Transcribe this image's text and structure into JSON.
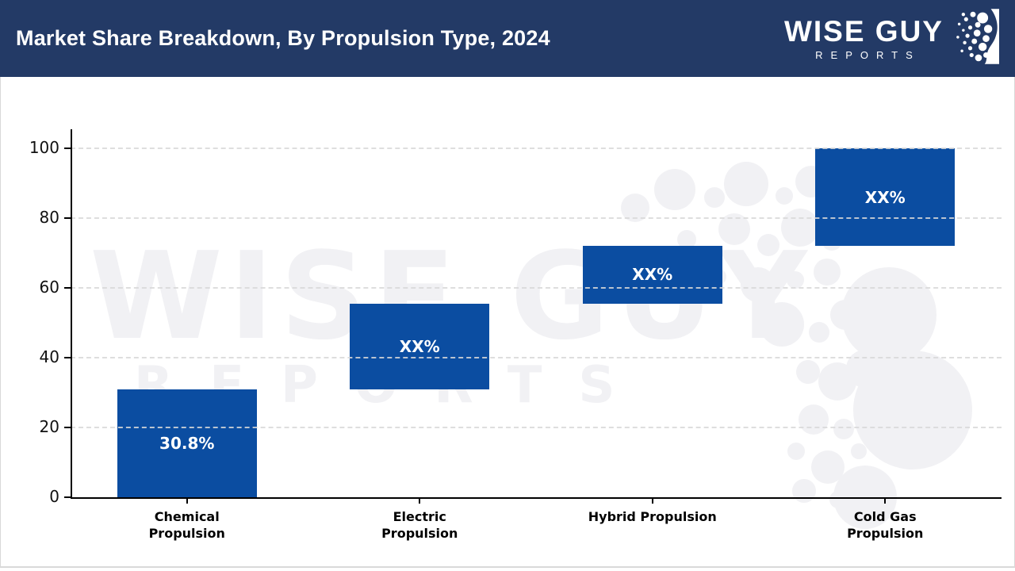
{
  "header": {
    "title": "Market Share Breakdown, By Propulsion Type, 2024",
    "logo": {
      "line1": "WISE GUY",
      "line2": "REPORTS"
    }
  },
  "watermark": {
    "line1": "WISE GUY",
    "line2": "REPORTS"
  },
  "colors": {
    "header_bg": "#233a66",
    "bar_blue": "#0b4da1",
    "grid_gray": "#d9d9d9",
    "watermark_gray": "#f1f1f4"
  },
  "chart_data": {
    "type": "bar",
    "subtype": "waterfall",
    "title": "Market Share Breakdown, By Propulsion Type, 2024",
    "xlabel": "",
    "ylabel": "",
    "categories": [
      "Chemical Propulsion",
      "Electric Propulsion",
      "Hybrid Propulsion",
      "Cold Gas Propulsion"
    ],
    "category_lines": [
      [
        "Chemical",
        "Propulsion"
      ],
      [
        "Electric",
        "Propulsion"
      ],
      [
        "Hybrid Propulsion"
      ],
      [
        "Cold Gas",
        "Propulsion"
      ]
    ],
    "bars": [
      {
        "category": "Chemical Propulsion",
        "start": 0,
        "end": 30.8,
        "label": "30.8%"
      },
      {
        "category": "Electric Propulsion",
        "start": 30.8,
        "end": 55.5,
        "label": "XX%"
      },
      {
        "category": "Hybrid Propulsion",
        "start": 55.5,
        "end": 72.0,
        "label": "XX%"
      },
      {
        "category": "Cold Gas Propulsion",
        "start": 72.0,
        "end": 100,
        "label": "XX%"
      }
    ],
    "yticks": [
      0,
      20,
      40,
      60,
      80,
      100
    ],
    "ylim": [
      0,
      105.5
    ],
    "grid": "horizontal-dashed",
    "legend": "none"
  }
}
